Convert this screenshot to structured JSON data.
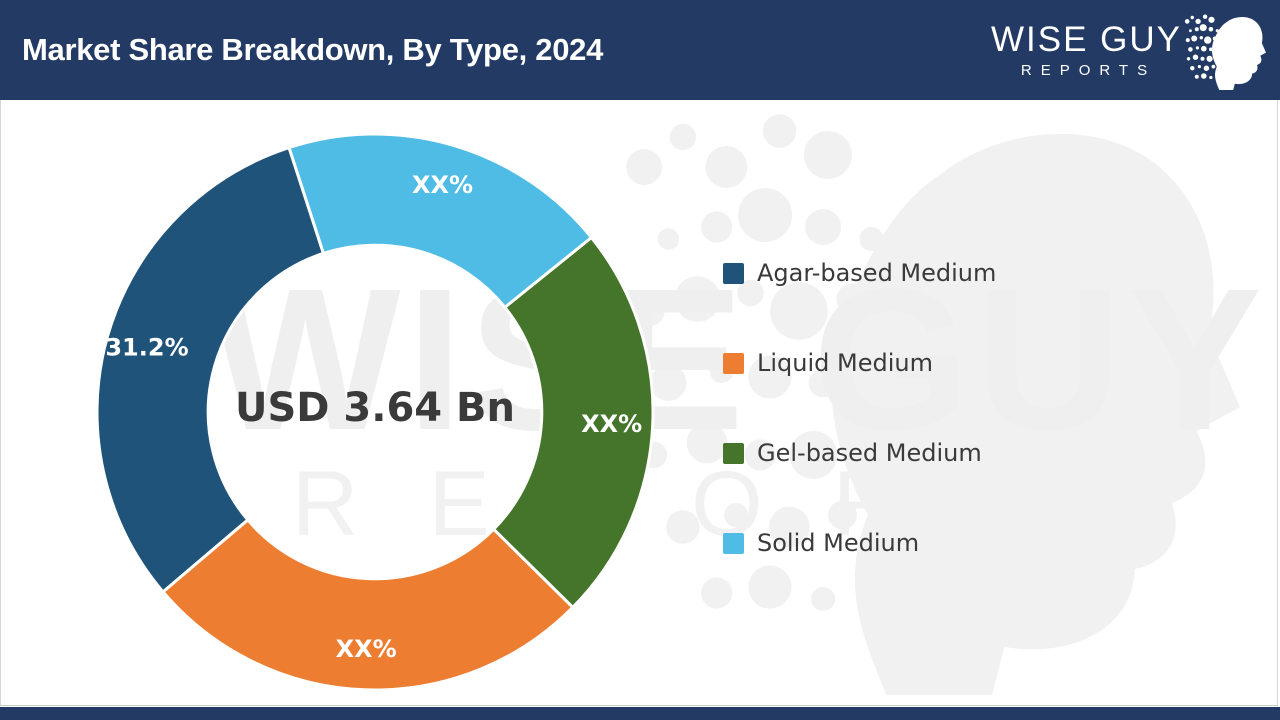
{
  "header": {
    "title": "Market Share Breakdown, By Type, 2024",
    "bg_color": "#223a64",
    "logo": {
      "line1": "WISE GUY",
      "line2": "REPORTS"
    }
  },
  "footer": {
    "bg_color": "#223a64"
  },
  "watermark": {
    "line1": "WISE GUY",
    "line2": "REPORTS"
  },
  "chart_data": {
    "type": "pie",
    "subtype": "donut",
    "title": "Market Share Breakdown, By Type, 2024",
    "center_text": "USD 3.64 Bn",
    "start_angle_deg": 108,
    "direction": "counterclockwise",
    "inner_radius_ratio": 0.6,
    "legend_position": "right",
    "gap_color": "#ffffff",
    "label_text_color": "#ffffff",
    "segments": [
      {
        "label": "Agar-based Medium",
        "value_pct": 31.2,
        "display_label": "31.2%",
        "color": "#1f5379"
      },
      {
        "label": "Liquid Medium",
        "value_pct": 26.4,
        "display_label": "XX%",
        "color": "#ed7d31"
      },
      {
        "label": "Gel-based Medium",
        "value_pct": 23.2,
        "display_label": "XX%",
        "color": "#44752a"
      },
      {
        "label": "Solid Medium",
        "value_pct": 19.2,
        "display_label": "XX%",
        "color": "#4ebce5"
      }
    ]
  }
}
